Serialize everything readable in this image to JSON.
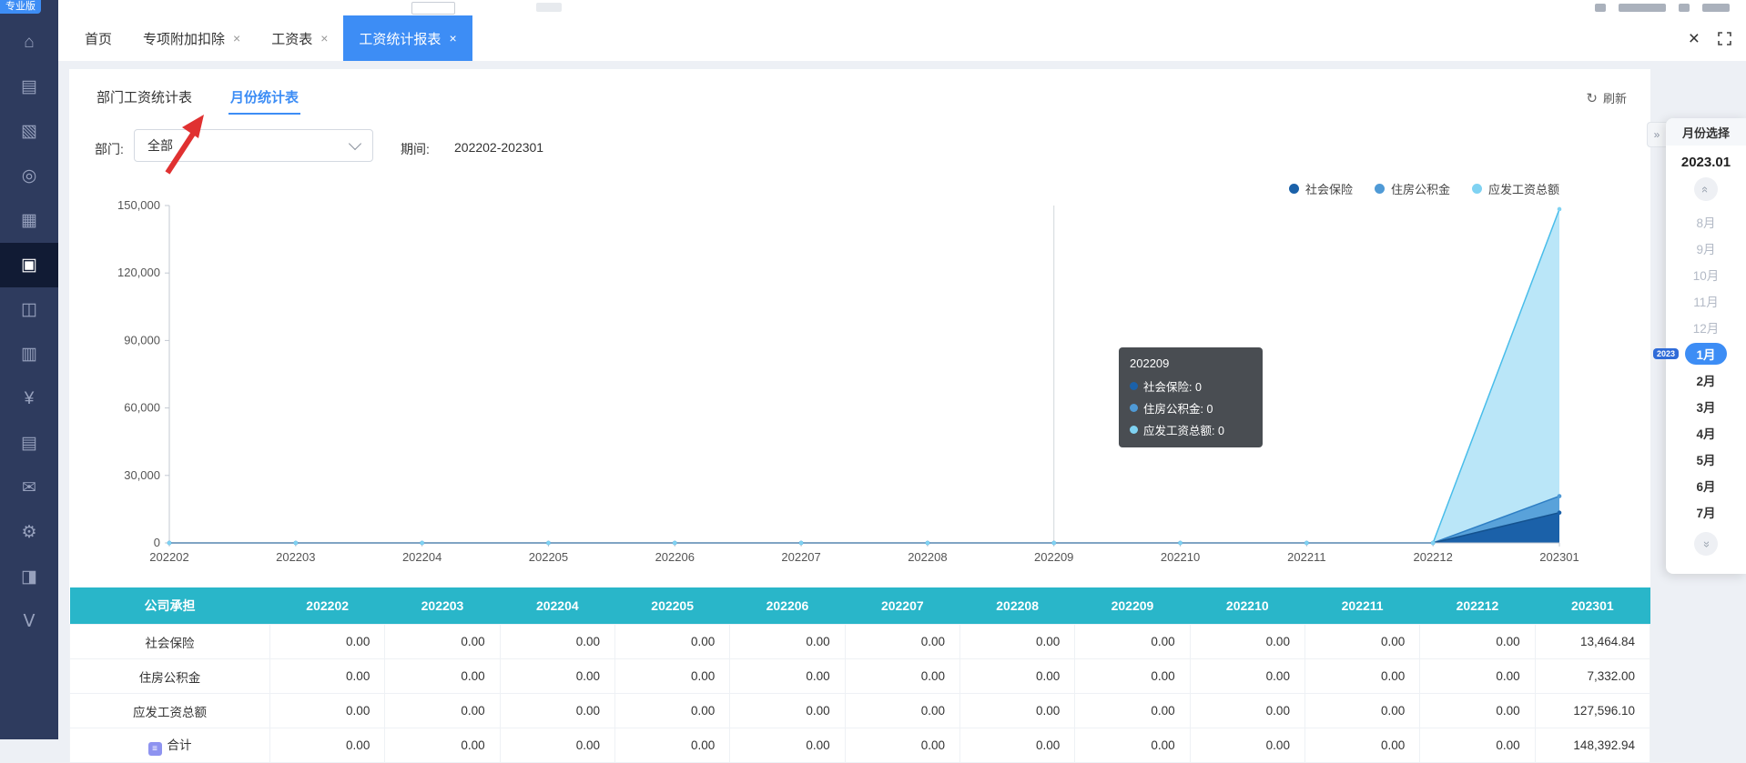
{
  "app": {
    "edition_badge": "专业版"
  },
  "icons": {
    "close": "×",
    "refresh": "↻",
    "collapse": "»",
    "scroll_up": "«",
    "scroll_down": "«",
    "total_row": "≡"
  },
  "sidebar": {
    "items": [
      {
        "name": "home",
        "glyph": "⌂",
        "active": false
      },
      {
        "name": "vouchers",
        "glyph": "▤",
        "active": false
      },
      {
        "name": "reports",
        "glyph": "▧",
        "active": false
      },
      {
        "name": "funds",
        "glyph": "◎",
        "active": false
      },
      {
        "name": "ledger",
        "glyph": "▦",
        "active": false
      },
      {
        "name": "salary-statistics",
        "glyph": "▣",
        "active": true
      },
      {
        "name": "inventory",
        "glyph": "◫",
        "active": false
      },
      {
        "name": "assets",
        "glyph": "▥",
        "active": false
      },
      {
        "name": "salary",
        "glyph": "¥",
        "active": false
      },
      {
        "name": "cashier",
        "glyph": "▤",
        "active": false
      },
      {
        "name": "contacts",
        "glyph": "✉",
        "active": false
      },
      {
        "name": "settings",
        "glyph": "⚙",
        "active": false
      },
      {
        "name": "invoice",
        "glyph": "◨",
        "active": false
      },
      {
        "name": "brand-v",
        "glyph": "Ⅴ",
        "active": false
      }
    ]
  },
  "tabs": {
    "items": [
      {
        "label": "首页",
        "closable": false,
        "active": false
      },
      {
        "label": "专项附加扣除",
        "closable": true,
        "active": false
      },
      {
        "label": "工资表",
        "closable": true,
        "active": false
      },
      {
        "label": "工资统计报表",
        "closable": true,
        "active": true
      }
    ]
  },
  "subtabs": {
    "items": [
      {
        "label": "部门工资统计表",
        "active": false
      },
      {
        "label": "月份统计表",
        "active": true
      }
    ],
    "refresh_label": "刷新"
  },
  "filters": {
    "department_label": "部门:",
    "department_value": "全部",
    "period_label": "期间:",
    "period_value": "202202-202301"
  },
  "chart_data": {
    "type": "area",
    "stacked": true,
    "categories": [
      "202202",
      "202203",
      "202204",
      "202205",
      "202206",
      "202207",
      "202208",
      "202209",
      "202210",
      "202211",
      "202212",
      "202301"
    ],
    "series": [
      {
        "name": "社会保险",
        "color": "#1b61a9",
        "fill": "#1b61a9",
        "line": "#14528f",
        "opacity": 1,
        "values": [
          0,
          0,
          0,
          0,
          0,
          0,
          0,
          0,
          0,
          0,
          0,
          13464.84
        ]
      },
      {
        "name": "住房公积金",
        "color": "#4f9ad6",
        "fill": "#4f9ad6",
        "line": "#2f7fc4",
        "opacity": 0.9,
        "values": [
          0,
          0,
          0,
          0,
          0,
          0,
          0,
          0,
          0,
          0,
          0,
          7332.0
        ]
      },
      {
        "name": "应发工资总额",
        "color": "#7fd2f2",
        "fill": "#a9e0f6",
        "line": "#49bdea",
        "opacity": 0.8,
        "values": [
          0,
          0,
          0,
          0,
          0,
          0,
          0,
          0,
          0,
          0,
          0,
          127596.1
        ]
      }
    ],
    "ylim": [
      0,
      150000
    ],
    "yticks": [
      "0",
      "30,000",
      "60,000",
      "90,000",
      "120,000",
      "150,000"
    ],
    "grid": false,
    "legend_position": "top-right",
    "tooltip": {
      "category": "202209",
      "rows": [
        {
          "label": "社会保险",
          "value": "0"
        },
        {
          "label": "住房公积金",
          "value": "0"
        },
        {
          "label": "应发工资总额",
          "value": "0"
        }
      ]
    }
  },
  "table": {
    "columns": [
      "公司承担",
      "202202",
      "202203",
      "202204",
      "202205",
      "202206",
      "202207",
      "202208",
      "202209",
      "202210",
      "202211",
      "202212",
      "202301"
    ],
    "rows": [
      {
        "label": "社会保险",
        "icon": false,
        "values": [
          "0.00",
          "0.00",
          "0.00",
          "0.00",
          "0.00",
          "0.00",
          "0.00",
          "0.00",
          "0.00",
          "0.00",
          "0.00",
          "13,464.84"
        ]
      },
      {
        "label": "住房公积金",
        "icon": false,
        "values": [
          "0.00",
          "0.00",
          "0.00",
          "0.00",
          "0.00",
          "0.00",
          "0.00",
          "0.00",
          "0.00",
          "0.00",
          "0.00",
          "7,332.00"
        ]
      },
      {
        "label": "应发工资总额",
        "icon": false,
        "values": [
          "0.00",
          "0.00",
          "0.00",
          "0.00",
          "0.00",
          "0.00",
          "0.00",
          "0.00",
          "0.00",
          "0.00",
          "0.00",
          "127,596.10"
        ]
      },
      {
        "label": "合计",
        "icon": true,
        "values": [
          "0.00",
          "0.00",
          "0.00",
          "0.00",
          "0.00",
          "0.00",
          "0.00",
          "0.00",
          "0.00",
          "0.00",
          "0.00",
          "148,392.94"
        ]
      }
    ]
  },
  "month_panel": {
    "title": "月份选择",
    "current": "2023.01",
    "year_badge": "2023",
    "months": [
      {
        "label": "8月",
        "state": "muted"
      },
      {
        "label": "9月",
        "state": "muted"
      },
      {
        "label": "10月",
        "state": "muted"
      },
      {
        "label": "11月",
        "state": "muted"
      },
      {
        "label": "12月",
        "state": "muted"
      },
      {
        "label": "1月",
        "state": "active"
      },
      {
        "label": "2月",
        "state": "normal"
      },
      {
        "label": "3月",
        "state": "normal"
      },
      {
        "label": "4月",
        "state": "normal"
      },
      {
        "label": "5月",
        "state": "normal"
      },
      {
        "label": "6月",
        "state": "normal"
      },
      {
        "label": "7月",
        "state": "normal"
      }
    ]
  },
  "colors": {
    "accent_blue": "#3d8df5",
    "sidebar_bg": "#2e3b5e",
    "table_header": "#29b6c9",
    "page_bg": "#edf0f5"
  }
}
